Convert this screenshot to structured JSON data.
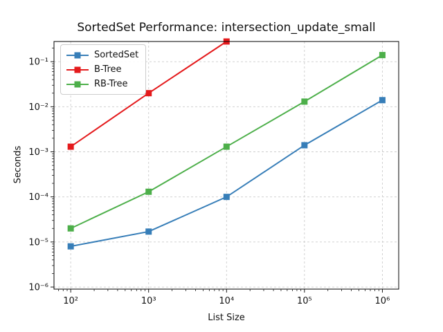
{
  "chart_data": {
    "type": "line",
    "title": "SortedSet Performance: intersection_update_small",
    "xlabel": "List Size",
    "ylabel": "Seconds",
    "x_scale": "log",
    "y_scale": "log",
    "grid": true,
    "legend_position": "upper left",
    "xlim": [
      61,
      1620000
    ],
    "ylim": [
      9e-07,
      0.28
    ],
    "x_ticks": [
      {
        "value": 100,
        "label": "10²"
      },
      {
        "value": 1000,
        "label": "10³"
      },
      {
        "value": 10000,
        "label": "10⁴"
      },
      {
        "value": 100000,
        "label": "10⁵"
      },
      {
        "value": 1000000,
        "label": "10⁶"
      }
    ],
    "y_ticks": [
      {
        "value": 0.1,
        "label": "10⁻¹"
      },
      {
        "value": 0.01,
        "label": "10⁻²"
      },
      {
        "value": 0.001,
        "label": "10⁻³"
      },
      {
        "value": 0.0001,
        "label": "10⁻⁴"
      },
      {
        "value": 1e-05,
        "label": "10⁻⁵"
      },
      {
        "value": 1e-06,
        "label": "10⁻⁶"
      }
    ],
    "series": [
      {
        "name": "SortedSet",
        "color": "#377eb8",
        "marker": "square",
        "x": [
          100,
          1000,
          10000,
          100000,
          1000000
        ],
        "values": [
          8e-06,
          1.7e-05,
          0.0001,
          0.0014,
          0.014
        ]
      },
      {
        "name": "B-Tree",
        "color": "#e41a1c",
        "marker": "square",
        "x": [
          100,
          1000,
          10000
        ],
        "values": [
          0.0013,
          0.02,
          0.28
        ]
      },
      {
        "name": "RB-Tree",
        "color": "#4daf4a",
        "marker": "square",
        "x": [
          100,
          1000,
          10000,
          100000,
          1000000
        ],
        "values": [
          2e-05,
          0.00013,
          0.0013,
          0.013,
          0.14
        ]
      }
    ],
    "grid_color": "#cccccc",
    "spine_color": "#000000"
  }
}
